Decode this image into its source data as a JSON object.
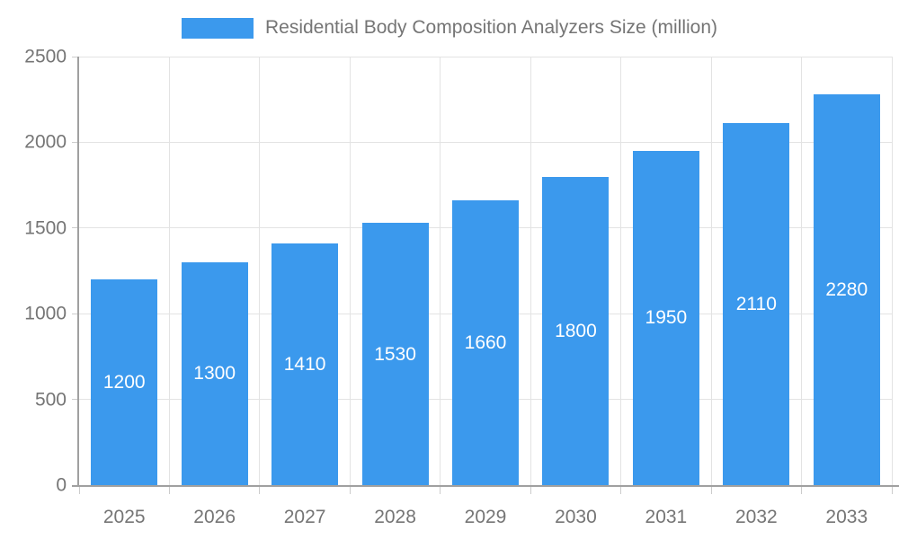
{
  "legend": {
    "label": "Residential Body Composition Analyzers Size (million)"
  },
  "chart_data": {
    "type": "bar",
    "title": "Residential Body Composition Analyzers Size (million)",
    "categories": [
      "2025",
      "2026",
      "2027",
      "2028",
      "2029",
      "2030",
      "2031",
      "2032",
      "2033"
    ],
    "series": [
      {
        "name": "Residential Body Composition Analyzers Size (million)",
        "values": [
          1200,
          1300,
          1410,
          1530,
          1660,
          1800,
          1950,
          2110,
          2280
        ]
      }
    ],
    "bar_value_labels": [
      "1200",
      "1300",
      "1410",
      "1530",
      "1660",
      "1800",
      "1950",
      "2110",
      "2280"
    ],
    "xlabel": "",
    "ylabel": "",
    "ylim": [
      0,
      2500
    ],
    "yticks": [
      0,
      500,
      1000,
      1500,
      2000,
      2500
    ],
    "ytick_labels": [
      "0",
      "500",
      "1000",
      "1500",
      "2000",
      "2500"
    ],
    "grid": true,
    "legend_position": "top-center",
    "bar_label_position": "center-inside"
  },
  "colors": {
    "bar": "#3B99ED",
    "grid": "#E3E3E3",
    "tick": "#CCCCCC",
    "axis": "#A0A0A0",
    "text": "#757575",
    "bar_label": "#FFFFFF",
    "background": "#FFFFFF"
  }
}
